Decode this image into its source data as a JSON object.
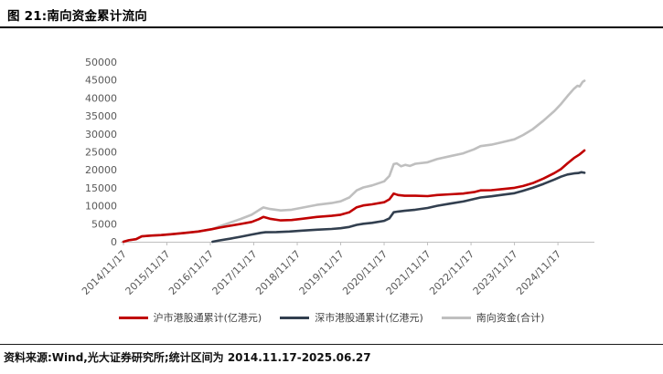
{
  "page": {
    "figure_title": "图 21:南向资金累计流向",
    "source_note": "资料来源:Wind,光大证券研究所;统计区间为 2014.11.17-2025.06.27"
  },
  "colors": {
    "shanghai_red": "#C00000",
    "shenzhen_navy": "#323F4F",
    "total_gray": "#BFBFBF",
    "axis_text": "#595959",
    "axis_line": "#BFBFBF",
    "legend_text": "#404040",
    "title_rule": "#000000",
    "footer_rule": "#1a1a1a"
  },
  "chart_data": {
    "type": "line",
    "title": "南向资金累计流向",
    "xlabel": "",
    "ylabel": "",
    "grid": false,
    "legend_position": "bottom",
    "axes": {
      "ylim": [
        0,
        50000
      ],
      "xlim": [
        2014.88,
        2025.72
      ],
      "y_ticks": [
        0,
        5000,
        10000,
        15000,
        20000,
        25000,
        30000,
        35000,
        40000,
        45000,
        50000
      ],
      "x_ticks": [
        {
          "label": "2014/11/17",
          "x": 2014.88
        },
        {
          "label": "2015/11/17",
          "x": 2015.88
        },
        {
          "label": "2016/11/17",
          "x": 2016.88
        },
        {
          "label": "2017/11/17",
          "x": 2017.88
        },
        {
          "label": "2018/11/17",
          "x": 2018.88
        },
        {
          "label": "2019/11/17",
          "x": 2019.88
        },
        {
          "label": "2020/11/17",
          "x": 2020.88
        },
        {
          "label": "2021/11/17",
          "x": 2021.88
        },
        {
          "label": "2022/11/17",
          "x": 2022.88
        },
        {
          "label": "2023/11/17",
          "x": 2023.88
        },
        {
          "label": "2024/11/17",
          "x": 2024.88
        }
      ]
    },
    "series": [
      {
        "id": "southbound-total",
        "name": "南向资金(合计)",
        "color": "#BFBFBF",
        "points": [
          [
            2014.88,
            0
          ],
          [
            2015.0,
            400
          ],
          [
            2015.17,
            700
          ],
          [
            2015.3,
            1500
          ],
          [
            2015.5,
            1700
          ],
          [
            2015.75,
            1850
          ],
          [
            2016.0,
            2100
          ],
          [
            2016.3,
            2450
          ],
          [
            2016.6,
            2850
          ],
          [
            2016.92,
            3500
          ],
          [
            2017.08,
            4250
          ],
          [
            2017.33,
            5300
          ],
          [
            2017.58,
            6350
          ],
          [
            2017.83,
            7500
          ],
          [
            2018.0,
            8800
          ],
          [
            2018.1,
            9550
          ],
          [
            2018.25,
            9100
          ],
          [
            2018.5,
            8700
          ],
          [
            2018.75,
            8900
          ],
          [
            2019.0,
            9500
          ],
          [
            2019.33,
            10250
          ],
          [
            2019.67,
            10750
          ],
          [
            2019.88,
            11250
          ],
          [
            2020.08,
            12300
          ],
          [
            2020.25,
            14300
          ],
          [
            2020.4,
            15100
          ],
          [
            2020.6,
            15650
          ],
          [
            2020.88,
            16800
          ],
          [
            2021.0,
            18300
          ],
          [
            2021.1,
            21600
          ],
          [
            2021.17,
            21800
          ],
          [
            2021.27,
            21000
          ],
          [
            2021.37,
            21400
          ],
          [
            2021.47,
            21100
          ],
          [
            2021.6,
            21700
          ],
          [
            2021.88,
            22100
          ],
          [
            2022.1,
            23000
          ],
          [
            2022.4,
            23800
          ],
          [
            2022.7,
            24600
          ],
          [
            2022.95,
            25700
          ],
          [
            2023.1,
            26600
          ],
          [
            2023.35,
            27000
          ],
          [
            2023.6,
            27700
          ],
          [
            2023.88,
            28500
          ],
          [
            2024.08,
            29700
          ],
          [
            2024.3,
            31300
          ],
          [
            2024.55,
            33700
          ],
          [
            2024.8,
            36400
          ],
          [
            2024.95,
            38300
          ],
          [
            2025.1,
            40500
          ],
          [
            2025.25,
            42600
          ],
          [
            2025.33,
            43400
          ],
          [
            2025.38,
            43200
          ],
          [
            2025.45,
            44500
          ],
          [
            2025.49,
            44800
          ]
        ]
      },
      {
        "id": "shenzhen-connect",
        "name": "深市港股通累计(亿港元)",
        "color": "#323F4F",
        "points": [
          [
            2016.93,
            0
          ],
          [
            2017.08,
            350
          ],
          [
            2017.33,
            850
          ],
          [
            2017.58,
            1400
          ],
          [
            2017.83,
            2000
          ],
          [
            2018.05,
            2500
          ],
          [
            2018.15,
            2650
          ],
          [
            2018.4,
            2700
          ],
          [
            2018.7,
            2850
          ],
          [
            2019.0,
            3100
          ],
          [
            2019.33,
            3350
          ],
          [
            2019.67,
            3550
          ],
          [
            2019.88,
            3750
          ],
          [
            2020.08,
            4100
          ],
          [
            2020.25,
            4700
          ],
          [
            2020.4,
            5000
          ],
          [
            2020.6,
            5250
          ],
          [
            2020.88,
            5800
          ],
          [
            2021.0,
            6500
          ],
          [
            2021.1,
            8200
          ],
          [
            2021.2,
            8400
          ],
          [
            2021.35,
            8600
          ],
          [
            2021.6,
            8900
          ],
          [
            2021.88,
            9400
          ],
          [
            2022.1,
            10000
          ],
          [
            2022.4,
            10600
          ],
          [
            2022.7,
            11200
          ],
          [
            2022.95,
            11900
          ],
          [
            2023.1,
            12300
          ],
          [
            2023.35,
            12650
          ],
          [
            2023.6,
            13050
          ],
          [
            2023.88,
            13500
          ],
          [
            2024.08,
            14200
          ],
          [
            2024.3,
            15000
          ],
          [
            2024.55,
            16100
          ],
          [
            2024.8,
            17300
          ],
          [
            2024.95,
            18100
          ],
          [
            2025.1,
            18700
          ],
          [
            2025.25,
            19000
          ],
          [
            2025.35,
            19100
          ],
          [
            2025.42,
            19350
          ],
          [
            2025.49,
            19200
          ]
        ]
      },
      {
        "id": "shanghai-connect",
        "name": "沪市港股通累计(亿港元)",
        "color": "#C00000",
        "points": [
          [
            2014.88,
            0
          ],
          [
            2015.0,
            400
          ],
          [
            2015.17,
            700
          ],
          [
            2015.3,
            1500
          ],
          [
            2015.5,
            1700
          ],
          [
            2015.75,
            1850
          ],
          [
            2016.0,
            2100
          ],
          [
            2016.3,
            2450
          ],
          [
            2016.6,
            2850
          ],
          [
            2016.92,
            3500
          ],
          [
            2017.08,
            3900
          ],
          [
            2017.33,
            4450
          ],
          [
            2017.58,
            4950
          ],
          [
            2017.83,
            5500
          ],
          [
            2018.0,
            6300
          ],
          [
            2018.1,
            6900
          ],
          [
            2018.25,
            6400
          ],
          [
            2018.5,
            5950
          ],
          [
            2018.75,
            6050
          ],
          [
            2019.0,
            6400
          ],
          [
            2019.33,
            6900
          ],
          [
            2019.67,
            7200
          ],
          [
            2019.88,
            7500
          ],
          [
            2020.08,
            8200
          ],
          [
            2020.25,
            9600
          ],
          [
            2020.4,
            10100
          ],
          [
            2020.6,
            10400
          ],
          [
            2020.88,
            11000
          ],
          [
            2021.0,
            11800
          ],
          [
            2021.1,
            13400
          ],
          [
            2021.2,
            13000
          ],
          [
            2021.35,
            12800
          ],
          [
            2021.6,
            12800
          ],
          [
            2021.88,
            12700
          ],
          [
            2022.1,
            13000
          ],
          [
            2022.4,
            13200
          ],
          [
            2022.7,
            13400
          ],
          [
            2022.95,
            13800
          ],
          [
            2023.1,
            14300
          ],
          [
            2023.35,
            14350
          ],
          [
            2023.6,
            14650
          ],
          [
            2023.88,
            15000
          ],
          [
            2024.08,
            15500
          ],
          [
            2024.3,
            16300
          ],
          [
            2024.55,
            17600
          ],
          [
            2024.8,
            19100
          ],
          [
            2024.95,
            20200
          ],
          [
            2025.1,
            21800
          ],
          [
            2025.25,
            23300
          ],
          [
            2025.38,
            24300
          ],
          [
            2025.49,
            25400
          ]
        ]
      }
    ],
    "legend_order": [
      "shanghai-connect",
      "shenzhen-connect",
      "southbound-total"
    ]
  }
}
